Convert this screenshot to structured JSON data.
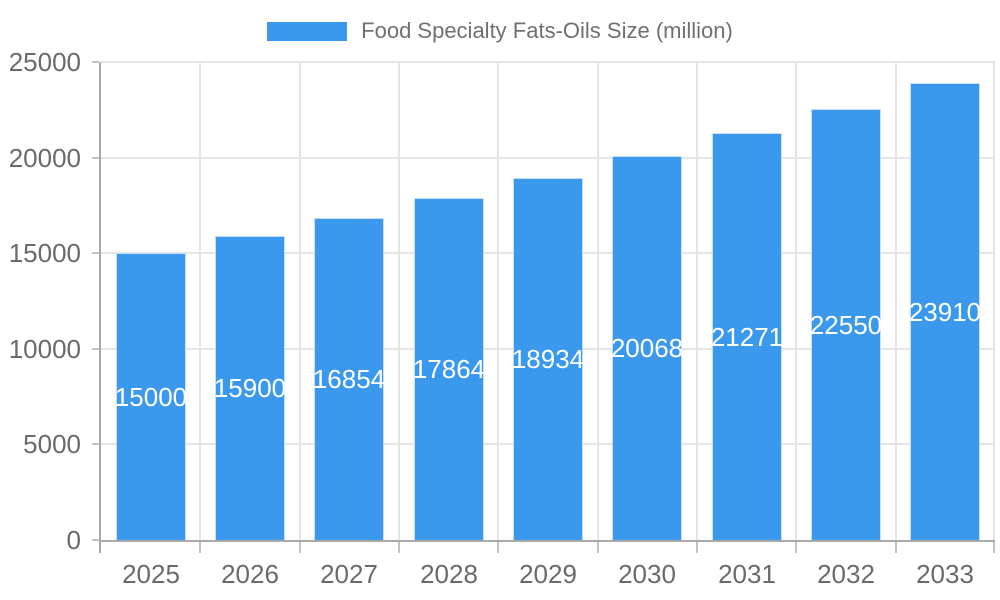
{
  "colors": {
    "bar": "#3a98ed",
    "bar_edge": "#c6dff6",
    "grid": "#e5e5e8",
    "axis": "#a9a9a9",
    "tick": "#c4c4c4",
    "axis_label_text": "#6a6a6a",
    "legend_text": "#707070",
    "data_label_text": "#ffffff",
    "background": "#ffffff"
  },
  "chart_data": {
    "type": "bar",
    "title": "Food Specialty Fats-Oils Size (million)",
    "series_name": "Food Specialty Fats-Oils Size (million)",
    "categories": [
      "2025",
      "2026",
      "2027",
      "2028",
      "2029",
      "2030",
      "2031",
      "2032",
      "2033"
    ],
    "values": [
      15000,
      15900,
      16854,
      17864,
      18934,
      20068,
      21271,
      22550,
      23910
    ],
    "xlabel": "",
    "ylabel": "",
    "ylim": [
      0,
      25000
    ],
    "yticks": [
      0,
      5000,
      10000,
      15000,
      20000,
      25000
    ],
    "grid": true,
    "legend_position": "top",
    "data_labels": "inside-center-white"
  }
}
